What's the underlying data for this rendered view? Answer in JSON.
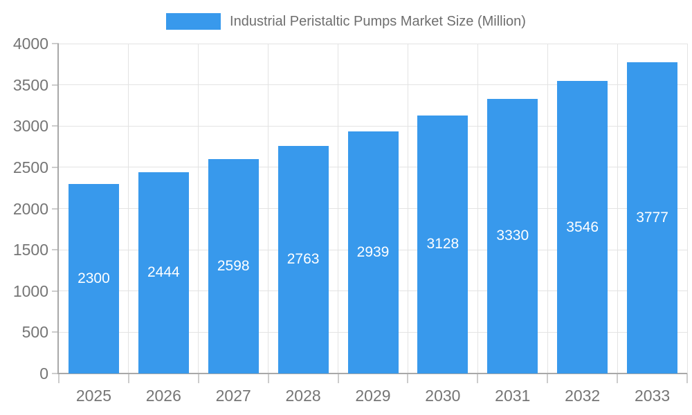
{
  "legend": {
    "label": "Industrial Peristaltic Pumps Market Size (Million)"
  },
  "colors": {
    "bar": "#3899EC",
    "bar_label": "#FFFFFF",
    "grid_line": "#E3E3E3",
    "axis_line": "#A8A8A8",
    "tick_mark": "#CCCCCC",
    "axis_text": "#757575",
    "legend_text": "#6E6E6E",
    "background": "#FFFFFF"
  },
  "chart_data": {
    "type": "bar",
    "title": "Industrial Peristaltic Pumps Market Size (Million)",
    "categories": [
      "2025",
      "2026",
      "2027",
      "2028",
      "2029",
      "2030",
      "2031",
      "2032",
      "2033"
    ],
    "values": [
      2300,
      2444,
      2598,
      2763,
      2939,
      3128,
      3330,
      3546,
      3777
    ],
    "series_name": "Industrial Peristaltic Pumps Market Size (Million)",
    "xlabel": "",
    "ylabel": "",
    "ylim": [
      0,
      4000
    ],
    "yticks": [
      0,
      500,
      1000,
      1500,
      2000,
      2500,
      3000,
      3500,
      4000
    ],
    "grid": true,
    "legend_position": "top",
    "value_labels": "inside-center"
  }
}
